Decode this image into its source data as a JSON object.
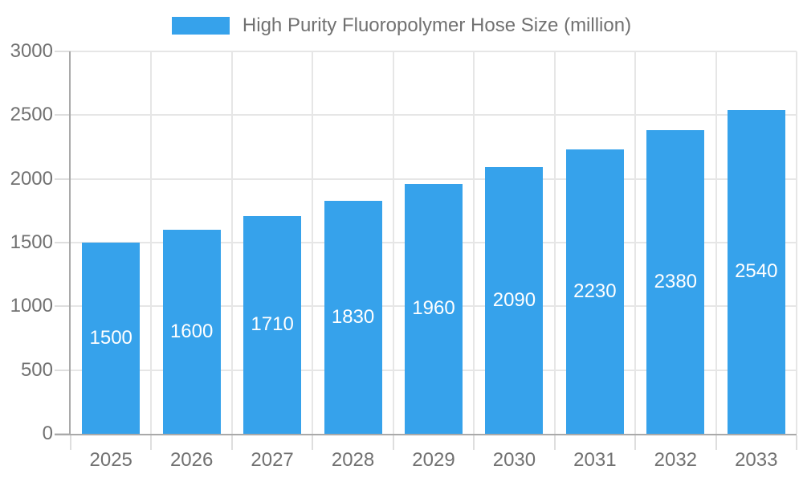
{
  "chart_data": {
    "type": "bar",
    "title": "High Purity Fluoropolymer Hose Size (million)",
    "series": [
      {
        "name": "High Purity Fluoropolymer Hose Size (million)",
        "values": [
          1500,
          1600,
          1710,
          1830,
          1960,
          2090,
          2230,
          2380,
          2540
        ],
        "color": "#36a2eb"
      }
    ],
    "categories": [
      "2025",
      "2026",
      "2027",
      "2028",
      "2029",
      "2030",
      "2031",
      "2032",
      "2033"
    ],
    "bar_value_labels": [
      "1500",
      "1600",
      "1710",
      "1830",
      "1960",
      "2090",
      "2230",
      "2380",
      "2540"
    ],
    "xlabel": "",
    "ylabel": "",
    "ylim": [
      0,
      3000
    ],
    "y_tick_step": 500,
    "y_tick_labels": [
      "0",
      "500",
      "1000",
      "1500",
      "2000",
      "2500",
      "3000"
    ],
    "grid": true,
    "legend_position": "top",
    "colors": {
      "bar": "#36a2eb",
      "bar_label_text": "#ffffff",
      "axis_text": "#717171",
      "axis_line": "#a9a9a9",
      "gridline": "#e6e6e6",
      "tick_mark": "#dedede",
      "background": "#ffffff"
    }
  },
  "legend": {
    "label": "High Purity Fluoropolymer Hose Size (million)",
    "swatch_color": "#36a2eb"
  }
}
